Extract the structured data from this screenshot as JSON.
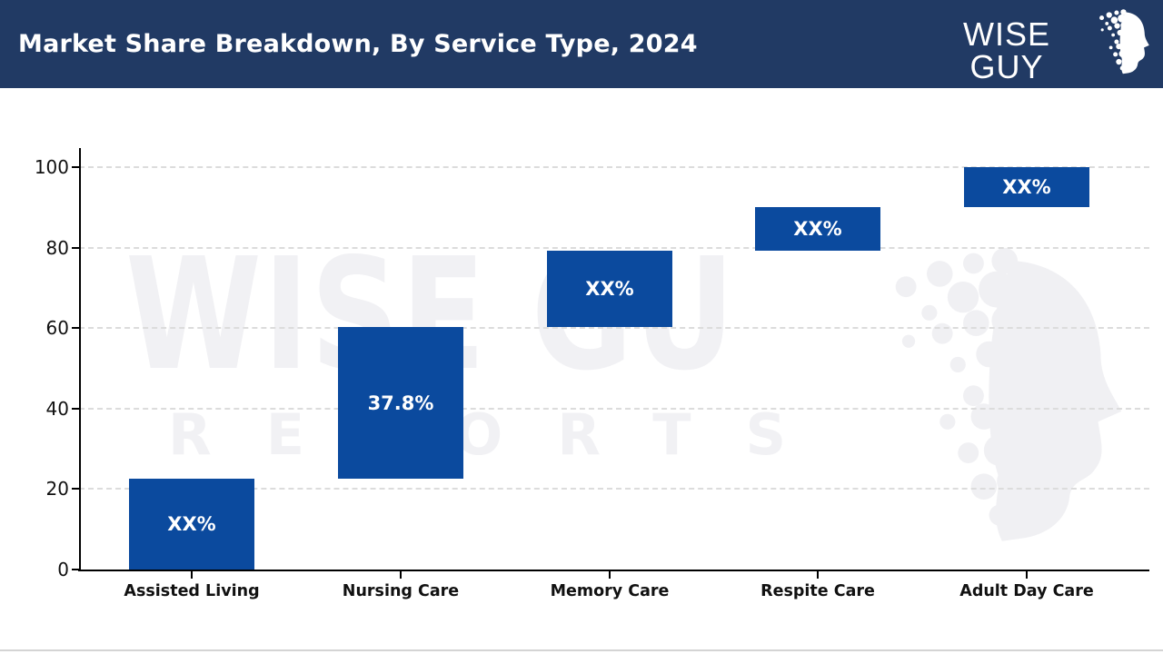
{
  "header": {
    "title": "Market Share Breakdown, By Service Type, 2024",
    "bg_color": "#213a64",
    "logo": {
      "line1": "WISE GUY",
      "line2": "REPORTS"
    }
  },
  "watermark": {
    "line1": "WISE GU",
    "line2": "REPORTS"
  },
  "chart_data": {
    "type": "bar",
    "subtype": "waterfall",
    "title": "Market Share Breakdown, By Service Type, 2024",
    "categories": [
      "Assisted Living",
      "Nursing Care",
      "Memory Care",
      "Respite Care",
      "Adult Day Care"
    ],
    "values": [
      22.5,
      37.8,
      18.9,
      10.8,
      10.0
    ],
    "segments": [
      {
        "start": 0.0,
        "end": 22.5
      },
      {
        "start": 22.5,
        "end": 60.3
      },
      {
        "start": 60.3,
        "end": 79.2
      },
      {
        "start": 79.2,
        "end": 90.0
      },
      {
        "start": 90.0,
        "end": 100.0
      }
    ],
    "bar_labels": [
      "XX%",
      "37.8%",
      "XX%",
      "XX%",
      "XX%"
    ],
    "xlabel": "",
    "ylabel": "",
    "yticks": [
      0,
      20,
      40,
      60,
      80,
      100
    ],
    "ylim": [
      0,
      105
    ],
    "grid": "horizontal-dashed",
    "legend": "none",
    "bar_color": "#0b4a9e"
  }
}
